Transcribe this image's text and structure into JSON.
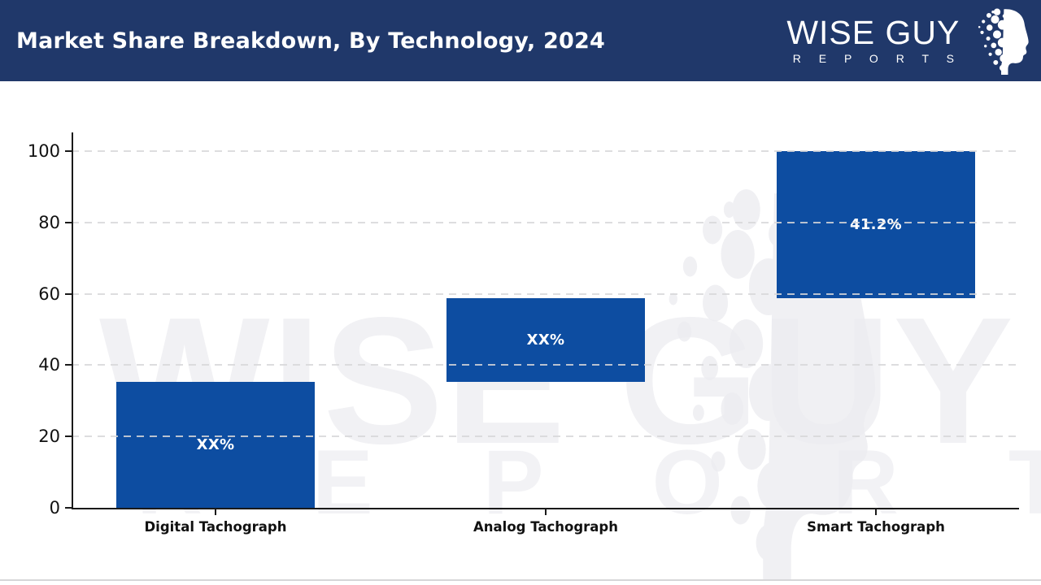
{
  "header": {
    "title": "Market Share Breakdown, By Technology, 2024",
    "brand": {
      "line1": "WISE GUY",
      "line2": "R E P O R T S"
    }
  },
  "watermark": {
    "line1": "WISE GUY",
    "line2": "R E P O R T S"
  },
  "colors": {
    "header_bg": "#20386a",
    "bar": "#0d4da1",
    "bar_label": "#ffffff",
    "grid": "#d7d7d9",
    "axis": "#1a1a1a",
    "watermark": "#f1f1f4"
  },
  "chart_data": {
    "type": "bar",
    "subtype": "floating-waterfall",
    "title": "Market Share Breakdown, By Technology, 2024",
    "categories": [
      "Digital Tachograph",
      "Analog Tachograph",
      "Smart Tachograph"
    ],
    "bars": [
      {
        "category": "Digital Tachograph",
        "start": 0,
        "end": 35.3,
        "label": "XX%"
      },
      {
        "category": "Analog Tachograph",
        "start": 35.3,
        "end": 58.8,
        "label": "XX%"
      },
      {
        "category": "Smart Tachograph",
        "start": 58.8,
        "end": 100,
        "label": "41.2%"
      }
    ],
    "yticks": [
      0,
      20,
      40,
      60,
      80,
      100
    ],
    "ylim": [
      0,
      105
    ],
    "xlabel": "",
    "ylabel": "",
    "grid": "horizontal-dashed",
    "legend": "none"
  }
}
